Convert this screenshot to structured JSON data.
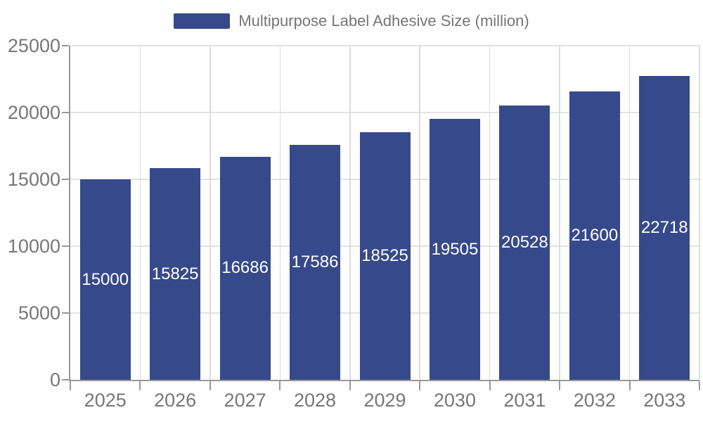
{
  "chart_data": {
    "type": "bar",
    "legend": "Multipurpose Label Adhesive Size (million)",
    "categories": [
      "2025",
      "2026",
      "2027",
      "2028",
      "2029",
      "2030",
      "2031",
      "2032",
      "2033"
    ],
    "values": [
      15000,
      15825,
      16686,
      17586,
      18525,
      19505,
      20528,
      21600,
      22718
    ],
    "title": "",
    "xlabel": "",
    "ylabel": "",
    "ylim": [
      0,
      25000
    ],
    "yticks": [
      0,
      5000,
      10000,
      15000,
      20000,
      25000
    ],
    "grid": true,
    "gridlines": "horizontal-and-vertical",
    "legend_position": "top-center",
    "value_labels": "inside-center"
  },
  "colors": {
    "bar": "#36498b",
    "grid_h": "#e3e3e3",
    "grid_v": "#dcdcdc",
    "axis": "#999999",
    "axis_text": "#777777",
    "legend_text": "#757575",
    "value_label": "#ffffff",
    "background": "#ffffff"
  }
}
